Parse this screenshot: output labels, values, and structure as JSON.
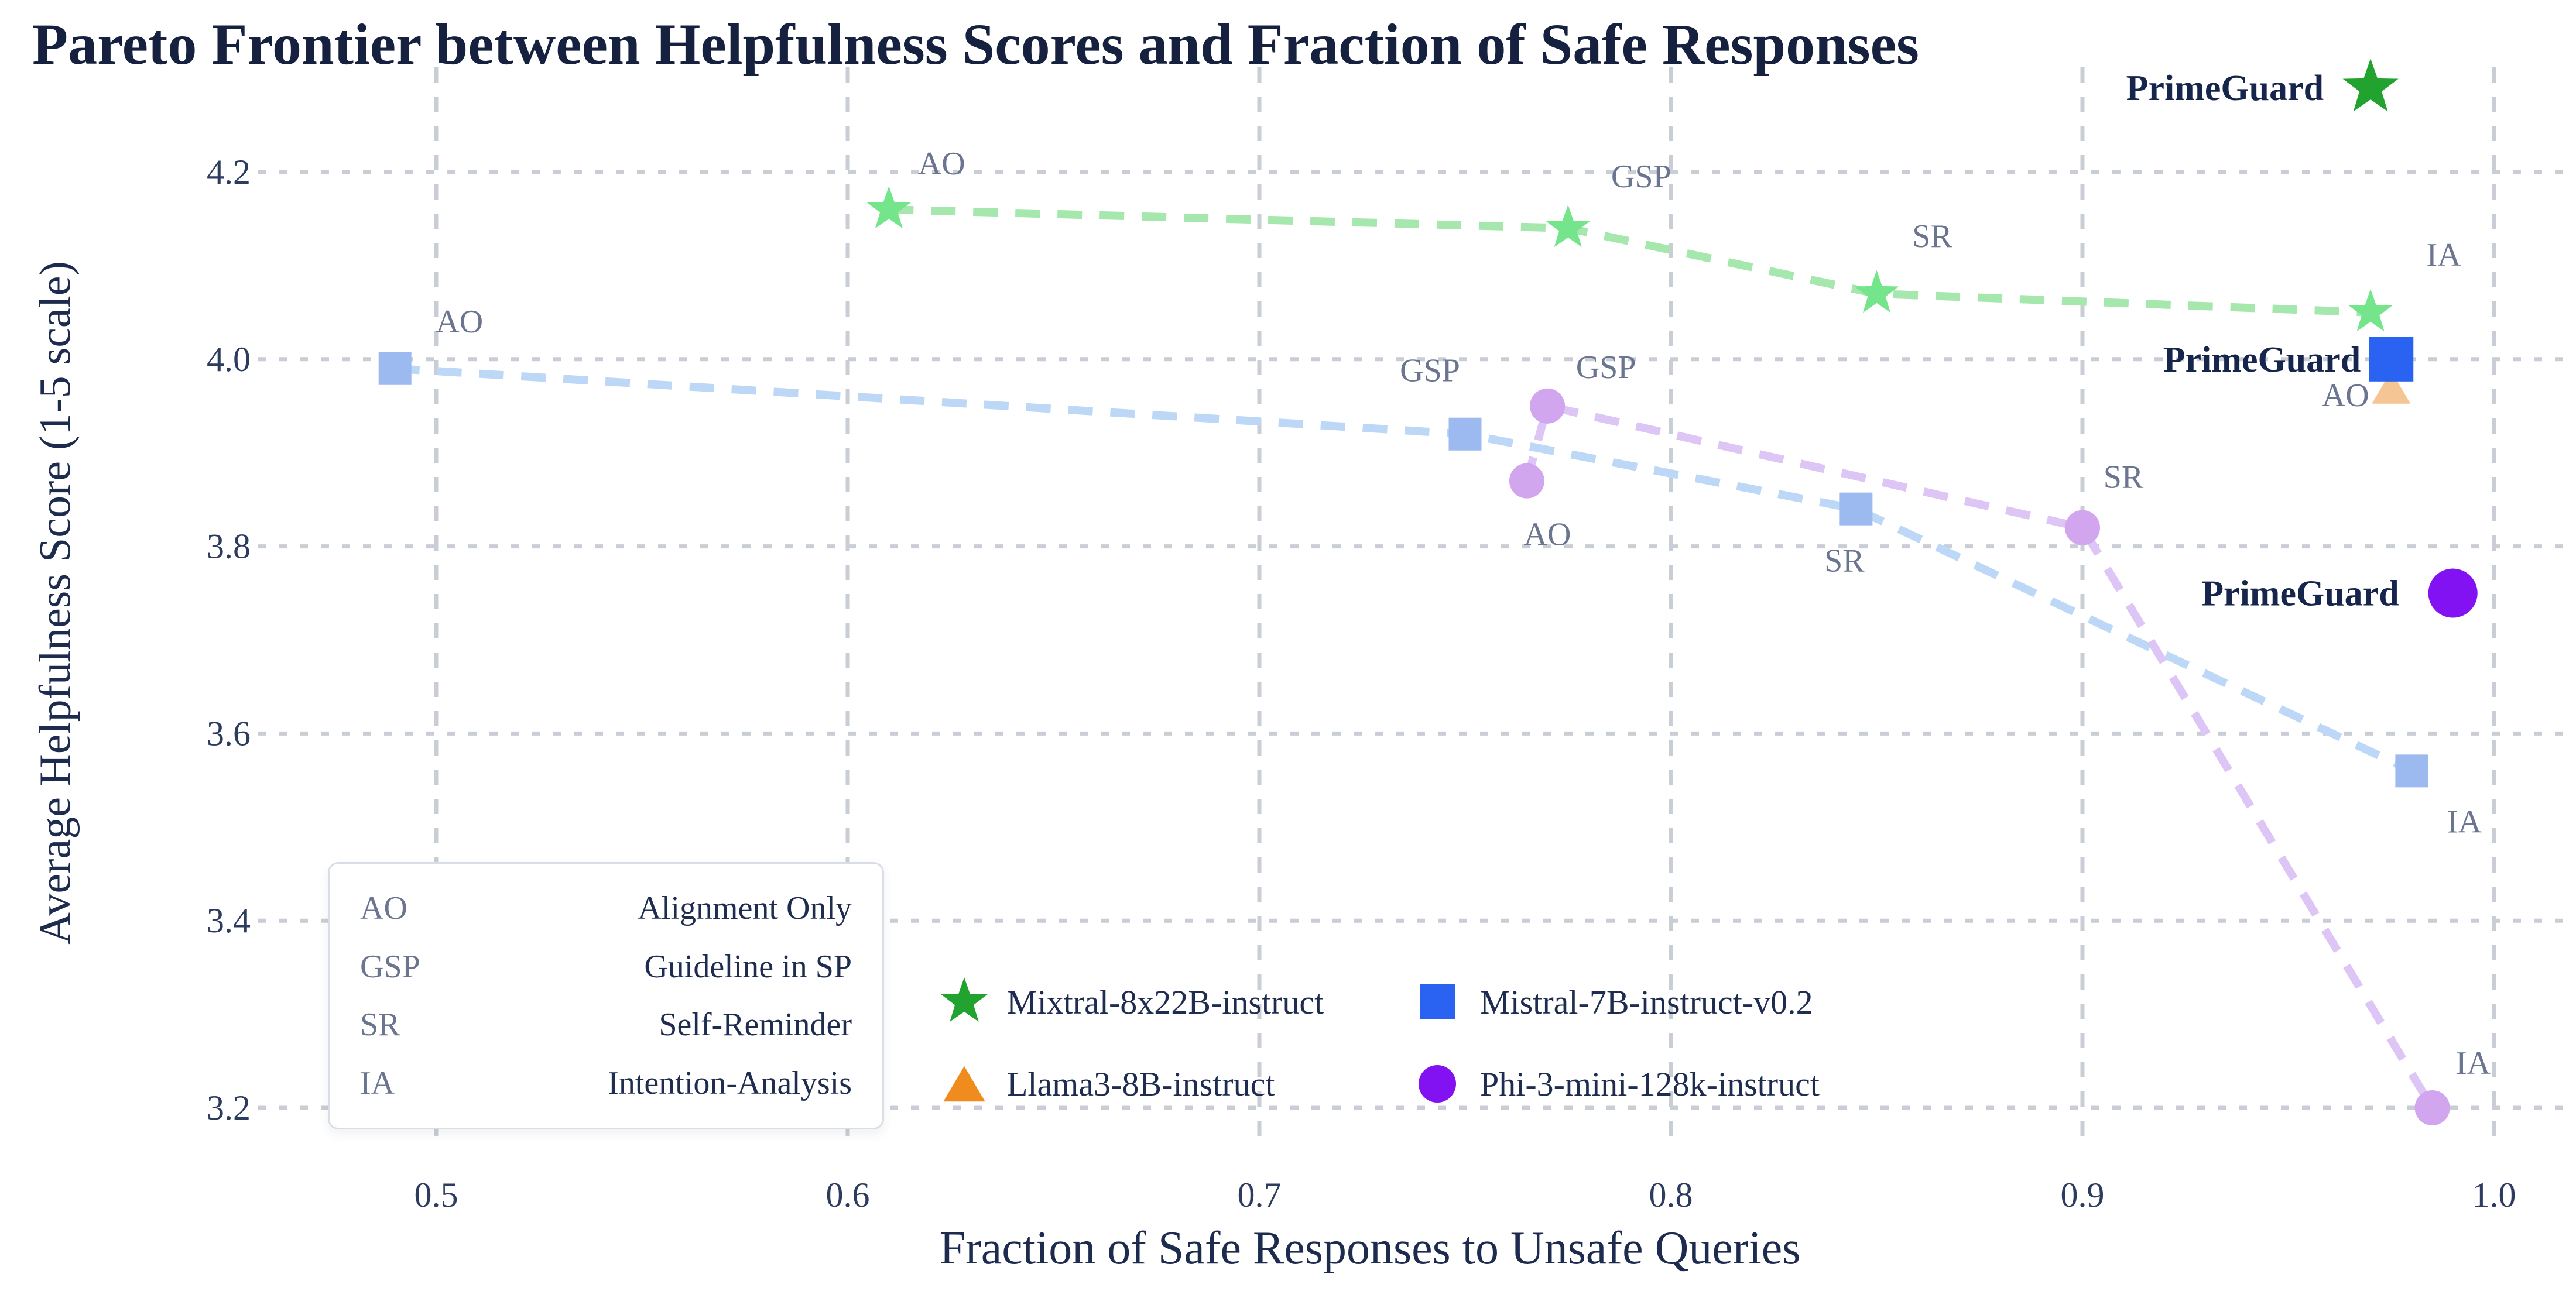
{
  "title": "Pareto Frontier between Helpfulness Scores and Fraction of Safe Responses",
  "colors": {
    "background": "#ffffff",
    "title_text": "#15213f",
    "axis_label_text": "#1c2b4e",
    "tick_text": "#2c3b5e",
    "annotation_text": "#6b7590",
    "primeguard_label_text": "#16254c",
    "gridline": "#c9ced6",
    "legend_border": "#d9dee6"
  },
  "abbrev_legend": {
    "items": [
      {
        "abbrev": "AO",
        "label": "Alignment Only"
      },
      {
        "abbrev": "GSP",
        "label": "Guideline in SP"
      },
      {
        "abbrev": "SR",
        "label": "Self-Reminder"
      },
      {
        "abbrev": "IA",
        "label": "Intention-Analysis"
      }
    ]
  },
  "chart_data": {
    "type": "scatter",
    "title": "Pareto Frontier between Helpfulness Scores and Fraction of Safe Responses",
    "xlabel": "Fraction of Safe Responses to Unsafe Queries",
    "ylabel": "Average Helpfulness Score (1-5 scale)",
    "xlim": [
      0.455,
      1.02
    ],
    "ylim": [
      3.14,
      4.31
    ],
    "grid": true,
    "xticks": [
      0.5,
      0.6,
      0.7,
      0.8,
      0.9,
      1.0
    ],
    "yticks": [
      3.2,
      3.4,
      3.6,
      3.8,
      4.0,
      4.2
    ],
    "series": [
      {
        "name": "Mixtral-8x22B-instruct",
        "marker": "star",
        "point_color": "#74e58a",
        "line_color": "#a6e7ae",
        "legend_color": "#22a32f",
        "points": [
          {
            "label": "AO",
            "x": 0.61,
            "y": 4.16,
            "dx": 90,
            "dy": -60
          },
          {
            "label": "GSP",
            "x": 0.775,
            "y": 4.14,
            "dx": 125,
            "dy": -70
          },
          {
            "label": "SR",
            "x": 0.85,
            "y": 4.07,
            "dx": 95,
            "dy": -80
          },
          {
            "label": "IA",
            "x": 0.97,
            "y": 4.05,
            "dx": 125,
            "dy": -80
          }
        ]
      },
      {
        "name": "Mistral-7B-instruct-v0.2",
        "marker": "square",
        "point_color": "#9cb9f0",
        "line_color": "#bdd7f6",
        "legend_color": "#2a63f1",
        "points": [
          {
            "label": "AO",
            "x": 0.49,
            "y": 3.99,
            "dx": 110,
            "dy": -62
          },
          {
            "label": "GSP",
            "x": 0.75,
            "y": 3.92,
            "dx": -60,
            "dy": -90
          },
          {
            "label": "SR",
            "x": 0.845,
            "y": 3.84,
            "dx": -20,
            "dy": 107
          },
          {
            "label": "IA",
            "x": 0.98,
            "y": 3.56,
            "dx": 90,
            "dy": 105
          }
        ]
      },
      {
        "name": "Llama3-8B-instruct",
        "marker": "triangle",
        "point_color": "#f5c694",
        "line_color": null,
        "legend_color": "#f08c1e",
        "points": [
          {
            "label": "AO",
            "x": 0.975,
            "y": 3.97,
            "dx": -78,
            "dy": 32
          }
        ]
      },
      {
        "name": "Phi-3-mini-128k-instruct",
        "marker": "circle",
        "point_color": "#d2a5ef",
        "line_color": "#ddc5f6",
        "legend_color": "#8312f3",
        "points": [
          {
            "label": "AO",
            "x": 0.765,
            "y": 3.87,
            "dx": 35,
            "dy": 110
          },
          {
            "label": "GSP",
            "x": 0.77,
            "y": 3.95,
            "dx": 100,
            "dy": -48
          },
          {
            "label": "SR",
            "x": 0.9,
            "y": 3.82,
            "dx": 70,
            "dy": -68
          },
          {
            "label": "IA",
            "x": 0.985,
            "y": 3.2,
            "dx": 70,
            "dy": -58
          }
        ]
      }
    ],
    "primeguard_points": [
      {
        "model": "Mixtral-8x22B-instruct",
        "label": "PrimeGuard",
        "marker": "star",
        "color": "#22a32f",
        "x": 0.97,
        "y": 4.29,
        "label_dx": -80
      },
      {
        "model": "Mistral-7B-instruct-v0.2",
        "label": "PrimeGuard",
        "marker": "square",
        "color": "#2a63f1",
        "x": 0.975,
        "y": 4.0,
        "label_dx": -52
      },
      {
        "model": "Phi-3-mini-128k-instruct",
        "label": "PrimeGuard",
        "marker": "circle",
        "color": "#8312f3",
        "x": 0.99,
        "y": 3.75,
        "label_dx": -92
      }
    ],
    "legend_position": "lower center"
  }
}
